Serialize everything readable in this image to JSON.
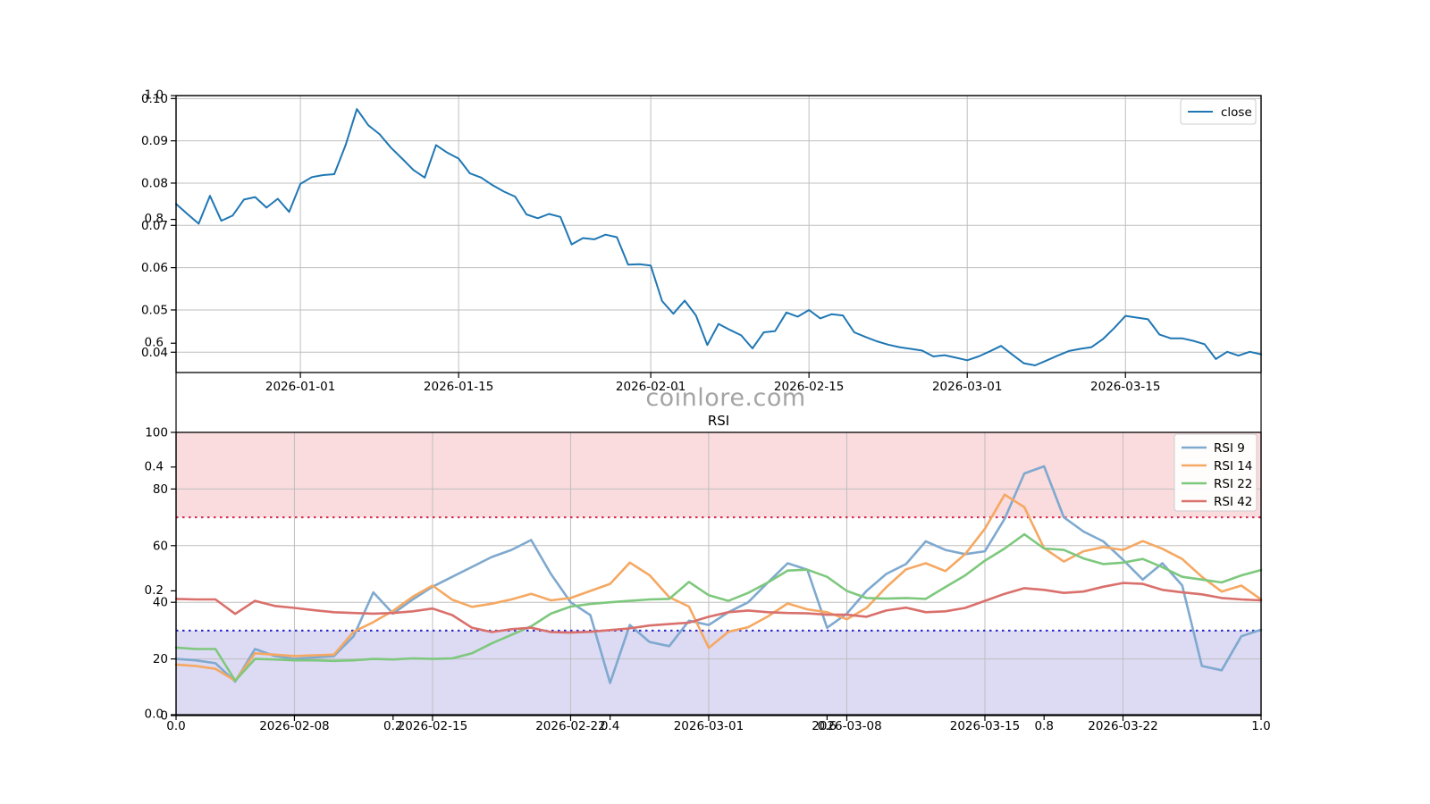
{
  "watermark": {
    "text": "coinlore.com",
    "color": "#9b9b9b"
  },
  "overlay_axis": {
    "x_tick_labels": [
      "0.0",
      "0.2",
      "0.4",
      "0.6",
      "0.8",
      "1.0"
    ],
    "y_tick_labels": [
      "0.0",
      "0.2",
      "0.4",
      "0.6",
      "0.8",
      "1.0"
    ]
  },
  "chart_data": [
    {
      "id": "price",
      "type": "line",
      "title": "",
      "legend_position": "upper right",
      "grid": true,
      "x_start_date": "2025-12-21",
      "x_interval_days": 1,
      "x_tick_labels": [
        "2026-01-01",
        "2026-01-15",
        "2026-02-01",
        "2026-02-15",
        "2026-03-01",
        "2026-03-15"
      ],
      "x_tick_indices": [
        11,
        25,
        42,
        56,
        70,
        84
      ],
      "ylim": [
        0.0352,
        0.1007
      ],
      "y_ticks": [
        0.04,
        0.05,
        0.06,
        0.07,
        0.08,
        0.09,
        0.1
      ],
      "y_tick_labels": [
        "0.04",
        "0.05",
        "0.06",
        "0.07",
        "0.08",
        "0.09",
        "0.10"
      ],
      "series": [
        {
          "name": "close",
          "color": "#1f77b4",
          "width": 2,
          "values": [
            0.0751,
            0.0727,
            0.0704,
            0.077,
            0.0711,
            0.0723,
            0.0761,
            0.0767,
            0.0742,
            0.0763,
            0.0732,
            0.0798,
            0.0814,
            0.0819,
            0.0821,
            0.089,
            0.0975,
            0.0937,
            0.0916,
            0.0884,
            0.0858,
            0.0831,
            0.0813,
            0.089,
            0.0872,
            0.0858,
            0.0823,
            0.0813,
            0.0795,
            0.078,
            0.0768,
            0.0726,
            0.0717,
            0.0727,
            0.072,
            0.0655,
            0.067,
            0.0667,
            0.0678,
            0.0672,
            0.0607,
            0.0608,
            0.0605,
            0.0521,
            0.0491,
            0.0522,
            0.0487,
            0.0417,
            0.0467,
            0.0453,
            0.044,
            0.0409,
            0.0447,
            0.045,
            0.0494,
            0.0484,
            0.05,
            0.048,
            0.049,
            0.0487,
            0.0447,
            0.0436,
            0.0426,
            0.0418,
            0.0412,
            0.0408,
            0.0404,
            0.039,
            0.0393,
            0.0387,
            0.0381,
            0.039,
            0.0402,
            0.0415,
            0.0394,
            0.0374,
            0.0369,
            0.038,
            0.0392,
            0.0403,
            0.0408,
            0.0412,
            0.0431,
            0.0457,
            0.0486,
            0.0482,
            0.0478,
            0.0442,
            0.0433,
            0.0433,
            0.0427,
            0.0419,
            0.0384,
            0.0401,
            0.0392,
            0.0401,
            0.0395
          ]
        }
      ]
    },
    {
      "id": "rsi",
      "type": "line",
      "title": "RSI",
      "legend_position": "upper right",
      "grid": true,
      "x_start_date": "2026-02-02",
      "x_interval_days": 1,
      "x_tick_labels": [
        "2026-02-08",
        "2026-02-15",
        "2026-02-22",
        "2026-03-01",
        "2026-03-08",
        "2026-03-15",
        "2026-03-22"
      ],
      "x_tick_indices": [
        6,
        13,
        20,
        27,
        34,
        41,
        48
      ],
      "ylim": [
        0,
        100
      ],
      "y_ticks": [
        0,
        20,
        40,
        60,
        80,
        100
      ],
      "y_tick_labels": [
        "0",
        "20",
        "40",
        "60",
        "80",
        "100"
      ],
      "bands": [
        {
          "name": "overbought-band",
          "from": 70,
          "to": 100,
          "color": "#fadbde"
        },
        {
          "name": "oversold-band",
          "from": 0,
          "to": 30,
          "color": "#dddaf3"
        }
      ],
      "hlines": [
        {
          "name": "overbought-line",
          "y": 70,
          "color": "#d62246"
        },
        {
          "name": "oversold-line",
          "y": 30,
          "color": "#2222cc"
        }
      ],
      "series": [
        {
          "name": "RSI 9",
          "color": "#7fa9cf",
          "width": 2.6,
          "values": [
            20,
            19.5,
            18.5,
            12,
            23.5,
            21,
            20,
            20.5,
            21,
            28,
            43.5,
            36,
            41,
            45.5,
            49,
            52.5,
            56,
            58.5,
            62,
            50,
            40,
            35.5,
            11.5,
            32,
            26,
            24.5,
            33.5,
            32,
            36.5,
            40,
            47,
            53.8,
            51.5,
            31,
            36,
            44,
            50,
            53.5,
            61.5,
            58.5,
            57,
            58,
            69.5,
            85.5,
            88,
            70,
            65,
            61.5,
            55,
            48,
            53.8,
            46,
            17.5,
            16,
            28,
            30.3
          ]
        },
        {
          "name": "RSI 14",
          "color": "#f5a862",
          "width": 2.6,
          "values": [
            18,
            17.5,
            16.5,
            12.3,
            22,
            21.5,
            21,
            21.3,
            21.5,
            29.6,
            33,
            37,
            42,
            45.9,
            40.9,
            38.4,
            39.5,
            41,
            43,
            40.7,
            41.5,
            44,
            46.5,
            54,
            49.6,
            41.8,
            38.5,
            23.9,
            29.6,
            31.2,
            35,
            39.6,
            37.5,
            36.5,
            34,
            38,
            45.3,
            51.6,
            53.8,
            51,
            57,
            66,
            78,
            73.6,
            59.1,
            54.4,
            58,
            59.5,
            58.5,
            61.6,
            58.9,
            55.3,
            49,
            43.8,
            45.9,
            41
          ]
        },
        {
          "name": "RSI 22",
          "color": "#7ec87e",
          "width": 2.6,
          "values": [
            24,
            23.5,
            23.5,
            12.3,
            20,
            19.8,
            19.5,
            19.5,
            19.3,
            19.5,
            20,
            19.8,
            20.2,
            20,
            20.2,
            22,
            25.5,
            28.5,
            31.5,
            36,
            38.5,
            39.4,
            40,
            40.5,
            41,
            41.2,
            47.2,
            42.5,
            40.5,
            43.3,
            47,
            51.2,
            51.5,
            49,
            44,
            41.5,
            41.3,
            41.5,
            41.2,
            45.4,
            49.5,
            54.7,
            59,
            64,
            59,
            58.5,
            55.5,
            53.5,
            54,
            55.3,
            52.4,
            49,
            48,
            47,
            49.5,
            51.4
          ]
        },
        {
          "name": "RSI 42",
          "color": "#d9706c",
          "width": 2.6,
          "values": [
            41.2,
            41,
            41,
            35.9,
            40.5,
            38.7,
            38,
            37.2,
            36.5,
            36.2,
            36,
            36.2,
            36.8,
            37.8,
            35.5,
            31,
            29.5,
            30.5,
            31,
            29.5,
            29.3,
            29.6,
            30.2,
            30.8,
            31.8,
            32.3,
            32.8,
            34.9,
            36.5,
            37.1,
            36.5,
            36.2,
            36.1,
            35.6,
            35.6,
            34.9,
            37.1,
            38.1,
            36.5,
            36.8,
            38,
            40.5,
            43,
            45,
            44.4,
            43.3,
            43.8,
            45.5,
            46.8,
            46.5,
            44.4,
            43.5,
            42.8,
            41.5,
            41,
            40.7
          ]
        }
      ]
    }
  ]
}
